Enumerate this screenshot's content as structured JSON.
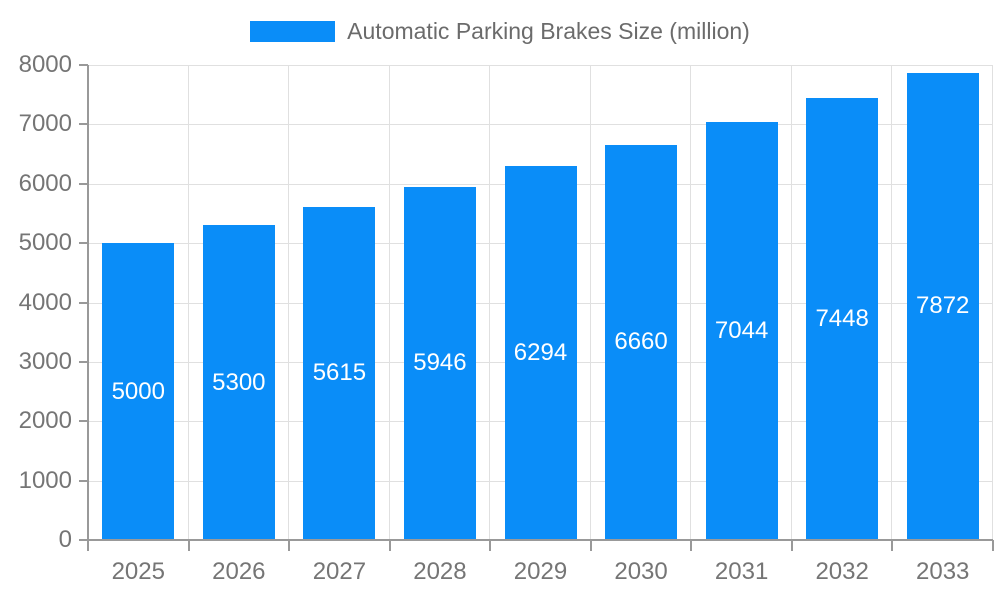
{
  "legend": {
    "label": "Automatic Parking Brakes Size (million)"
  },
  "chart_data": {
    "type": "bar",
    "title": "",
    "xlabel": "",
    "ylabel": "",
    "categories": [
      "2025",
      "2026",
      "2027",
      "2028",
      "2029",
      "2030",
      "2031",
      "2032",
      "2033"
    ],
    "values": [
      5000,
      5300,
      5615,
      5946,
      6294,
      6660,
      7044,
      7448,
      7872
    ],
    "series_name": "Automatic Parking Brakes Size (million)",
    "ylim": [
      0,
      8000
    ],
    "ytick_step": 1000,
    "yticks": [
      0,
      1000,
      2000,
      3000,
      4000,
      5000,
      6000,
      7000,
      8000
    ],
    "grid": true,
    "legend_position": "top",
    "value_labels": "inside-center",
    "colors": {
      "bar": "#0a8df8",
      "value_label": "#ffffff",
      "grid": "#e0e0e0",
      "axis": "#999999",
      "tick_label": "#757575",
      "legend_label": "#6b6b6b",
      "background": "#ffffff"
    }
  }
}
